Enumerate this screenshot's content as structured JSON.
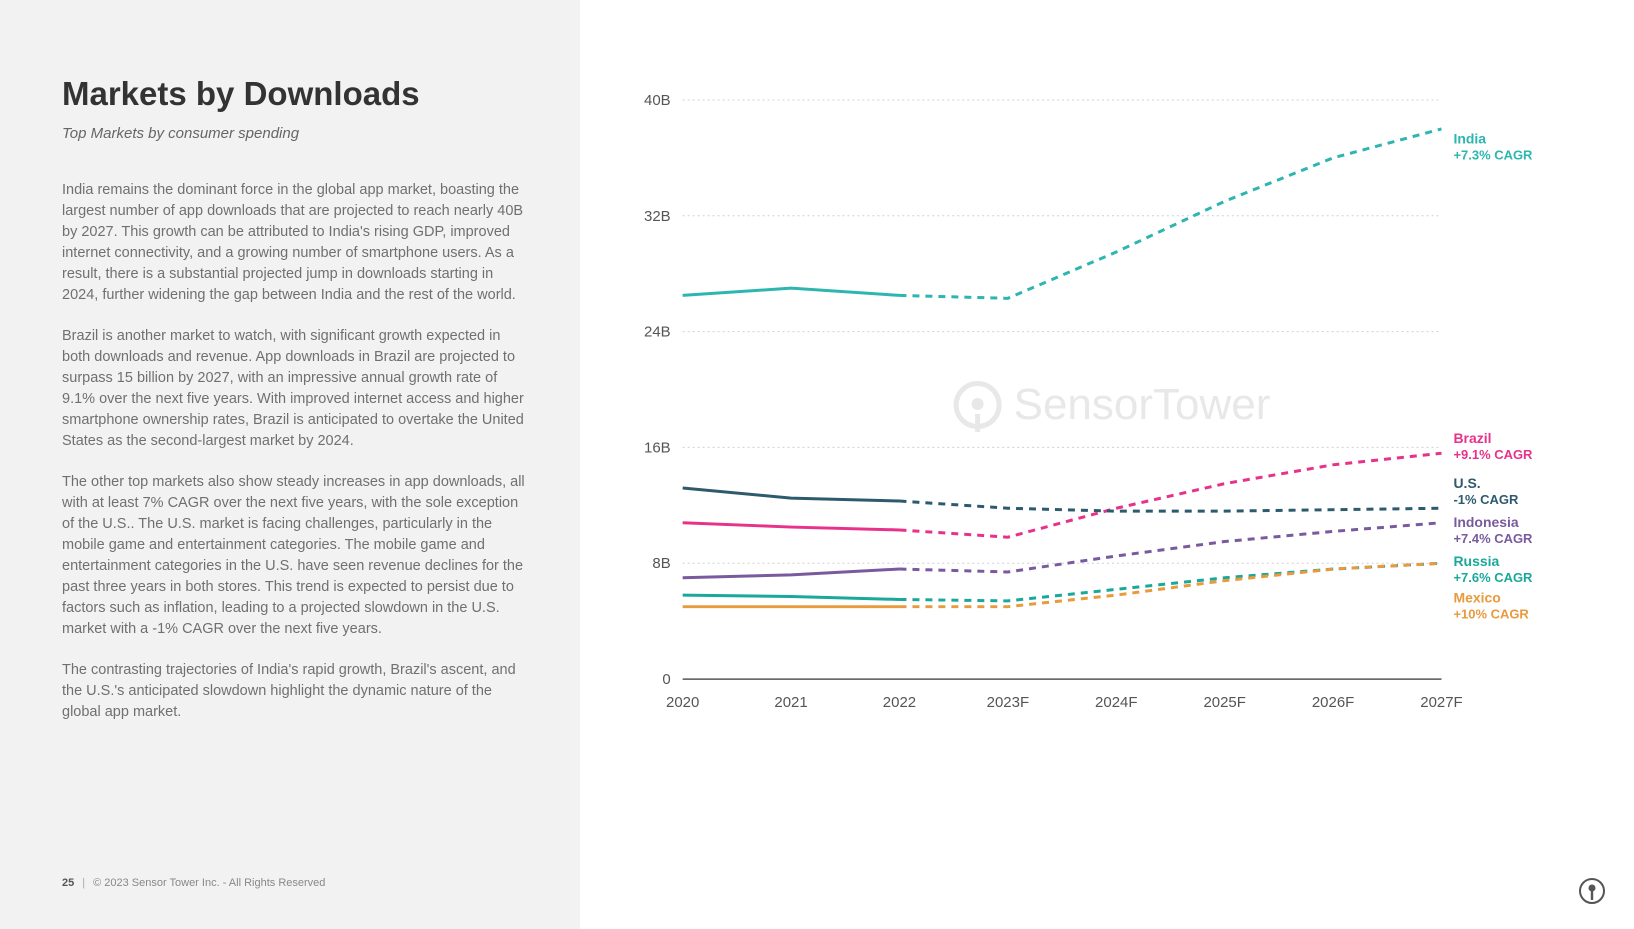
{
  "left": {
    "title": "Markets by Downloads",
    "subtitle": "Top Markets by consumer spending",
    "paragraphs": [
      "India remains the dominant force in the global app market, boasting the largest number of app downloads that are projected to reach nearly 40B by 2027. This growth can be attributed to India's rising GDP, improved internet connectivity, and a growing number of smartphone users. As a result, there is a substantial projected jump in downloads starting in 2024, further widening the gap between India and the rest of the world.",
      "Brazil is another market to watch, with significant growth expected in both downloads and revenue. App downloads in Brazil are projected to surpass 15 billion by 2027, with an impressive annual growth rate of 9.1% over the next five years. With improved internet access and higher smartphone ownership rates, Brazil is anticipated to overtake the United States as the second-largest market by 2024.",
      "The other top markets also show steady increases in app downloads, all with at least 7% CAGR over the next five years, with the sole exception of the U.S.. The U.S. market is facing challenges, particularly in the mobile game and entertainment categories. The mobile game and entertainment categories in the U.S. have seen revenue declines for the past three years in both stores. This trend is expected to persist due to factors such as inflation, leading to a projected slowdown in the U.S. market with a -1% CAGR over the next five years.",
      "The contrasting trajectories of India's rapid growth, Brazil's ascent, and the U.S.'s anticipated slowdown highlight the dynamic nature of the global app market."
    ],
    "page_number": "25",
    "footer_text": "© 2023 Sensor Tower Inc. - All Rights Reserved"
  },
  "chart": {
    "type": "line",
    "watermark_text": "SensorTower",
    "x_labels": [
      "2020",
      "2021",
      "2022",
      "2023F",
      "2024F",
      "2025F",
      "2026F",
      "2027F"
    ],
    "y_ticks": [
      0,
      8,
      16,
      24,
      32,
      40
    ],
    "y_tick_labels": [
      "0",
      "8B",
      "16B",
      "24B",
      "32B",
      "40B"
    ],
    "ylim": [
      0,
      40
    ],
    "solid_until_index": 2,
    "grid_color": "#d0d0d0",
    "axis_color": "#555555",
    "background_color": "#ffffff",
    "tick_fontsize": 15,
    "label_fontsize": 14,
    "line_width": 3,
    "dash_pattern": "7,6",
    "series": [
      {
        "name": "India",
        "color": "#2db5b0",
        "values": [
          26.5,
          27.0,
          26.5,
          26.3,
          29.5,
          33.0,
          36.0,
          38.0
        ],
        "label": "India",
        "sublabel": "+7.3% CAGR",
        "label_y": 37.0
      },
      {
        "name": "Brazil",
        "color": "#e8318a",
        "values": [
          10.8,
          10.5,
          10.3,
          9.8,
          11.8,
          13.5,
          14.8,
          15.6
        ],
        "label": "Brazil",
        "sublabel": "+9.1% CAGR",
        "label_y": 16.3
      },
      {
        "name": "US",
        "color": "#2e5a6e",
        "values": [
          13.2,
          12.5,
          12.3,
          11.8,
          11.6,
          11.6,
          11.7,
          11.8
        ],
        "label": "U.S.",
        "sublabel": "-1% CAGR",
        "label_y": 13.2
      },
      {
        "name": "Indonesia",
        "color": "#7a5a9e",
        "values": [
          7.0,
          7.2,
          7.6,
          7.4,
          8.5,
          9.5,
          10.2,
          10.8
        ],
        "label": "Indonesia",
        "sublabel": "+7.4% CAGR",
        "label_y": 10.5
      },
      {
        "name": "Russia",
        "color": "#1aa89a",
        "values": [
          5.8,
          5.7,
          5.5,
          5.4,
          6.2,
          7.0,
          7.6,
          8.0
        ],
        "label": "Russia",
        "sublabel": "+7.6% CAGR",
        "label_y": 7.8
      },
      {
        "name": "Mexico",
        "color": "#e89a3c",
        "values": [
          5.0,
          5.0,
          5.0,
          5.0,
          5.8,
          6.8,
          7.6,
          8.0
        ],
        "label": "Mexico",
        "sublabel": "+10% CAGR",
        "label_y": 5.3
      }
    ]
  }
}
